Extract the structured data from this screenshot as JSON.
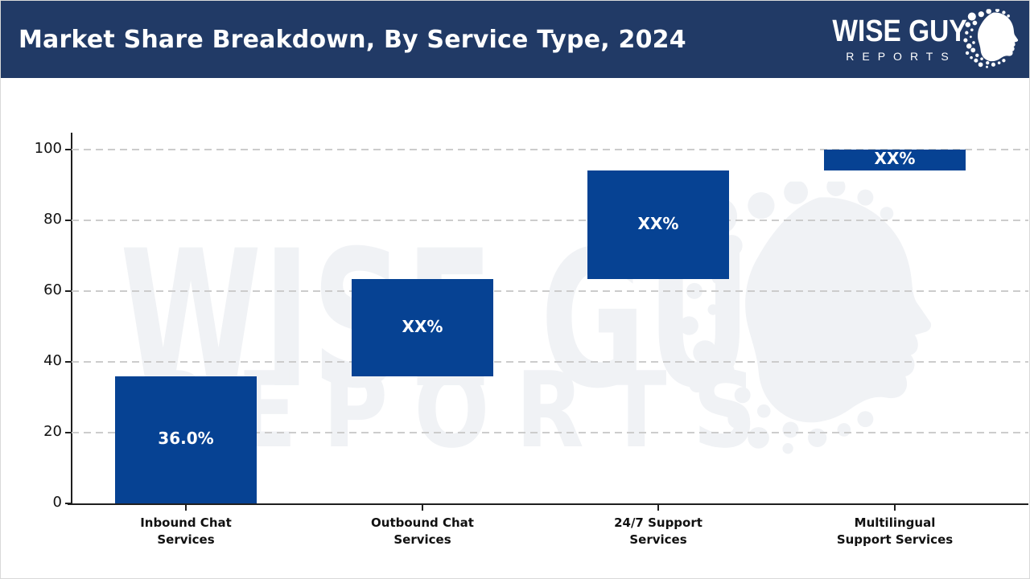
{
  "header": {
    "title": "Market Share Breakdown, By Service Type, 2024",
    "logo": {
      "wordmark": "WISE GUY",
      "subtext": "REPORTS"
    }
  },
  "watermark": {
    "line1": "WISE GU",
    "line2": "REPORTS"
  },
  "chart_data": {
    "type": "bar",
    "subtype": "waterfall",
    "title": "Market Share Breakdown, By Service Type, 2024",
    "categories": [
      "Inbound Chat Services",
      "Outbound Chat Services",
      "24/7 Support Services",
      "Multilingual Support Services"
    ],
    "category_label_lines": [
      [
        "Inbound Chat",
        "Services"
      ],
      [
        "Outbound Chat",
        "Services"
      ],
      [
        "24/7 Support",
        "Services"
      ],
      [
        "Multilingual",
        "Support Services"
      ]
    ],
    "series": [
      {
        "name": "Market share (%)",
        "segments": [
          {
            "start": 0,
            "end": 36,
            "label": "36.0%"
          },
          {
            "start": 36,
            "end": 63.3,
            "label": "XX%"
          },
          {
            "start": 63.3,
            "end": 94,
            "label": "XX%"
          },
          {
            "start": 94,
            "end": 100,
            "label": "XX%"
          }
        ]
      }
    ],
    "xlabel": "",
    "ylabel": "",
    "ylim": [
      0,
      100
    ],
    "yticks": [
      0,
      20,
      40,
      60,
      80,
      100
    ],
    "grid": {
      "horizontal": true,
      "style": "dashed",
      "color": "#cccccc"
    },
    "legend": "none",
    "colors": {
      "bar": "#064293",
      "bar_label": "#ffffff",
      "axis": "#1f1f1f",
      "tick_label": "#111111",
      "header_bg": "#213a66",
      "watermark": "#f0f2f5"
    }
  }
}
